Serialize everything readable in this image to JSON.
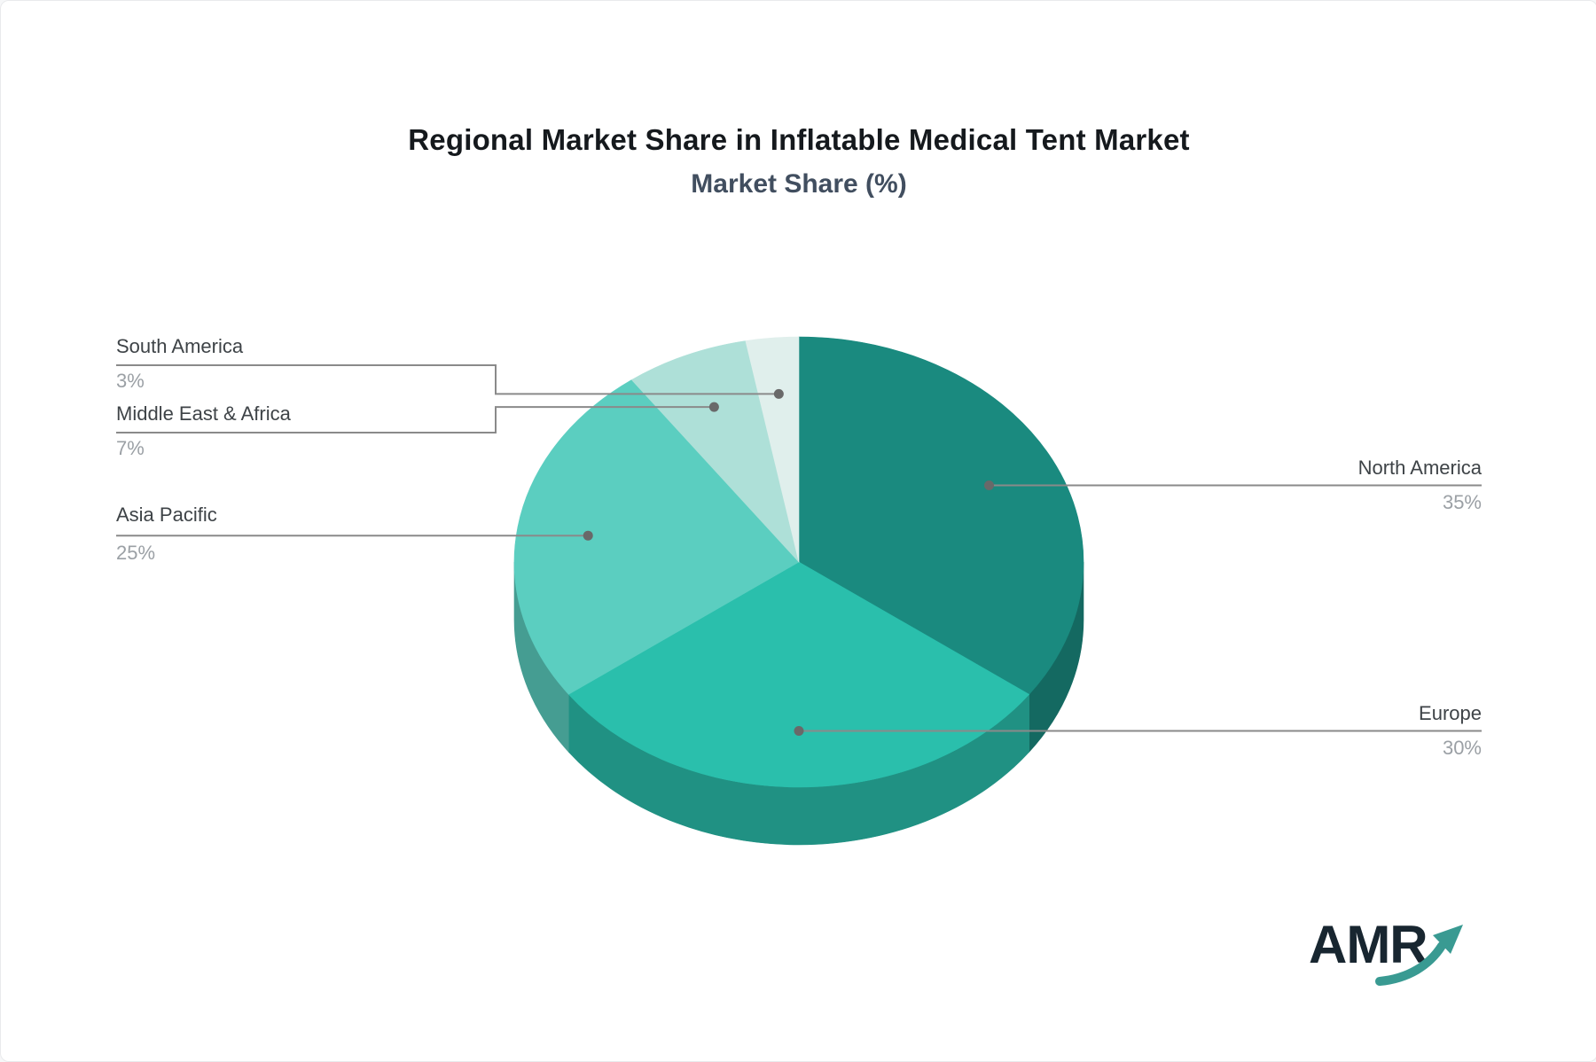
{
  "chart_data": {
    "type": "pie",
    "title": "Regional Market Share in Inflatable Medical Tent Market",
    "subtitle": "Market Share (%)",
    "unit": "%",
    "style": "3d-depth",
    "direction": "clockwise",
    "start_angle_deg": -90,
    "legend_position": "callout-labels",
    "slices": [
      {
        "label": "North America",
        "value": 35,
        "pct_text": "35%",
        "color": "#1a8a7f"
      },
      {
        "label": "Europe",
        "value": 30,
        "pct_text": "30%",
        "color": "#2abfac"
      },
      {
        "label": "Asia Pacific",
        "value": 25,
        "pct_text": "25%",
        "color": "#5bcec0"
      },
      {
        "label": "Middle East & Africa",
        "value": 7,
        "pct_text": "7%",
        "color": "#aee0d8"
      },
      {
        "label": "South America",
        "value": 3,
        "pct_text": "3%",
        "color": "#e0efec"
      }
    ],
    "palette": {
      "title_text": "#15191d",
      "subtitle_text": "#414e5f",
      "label_text": "#3e4347",
      "pct_text": "#9ba0a5",
      "leader_line": "#8a8a8a",
      "leader_dot": "#696969"
    }
  },
  "logo": {
    "text": "AMR",
    "text_color": "#182630",
    "arrow_color": "#399a92"
  }
}
